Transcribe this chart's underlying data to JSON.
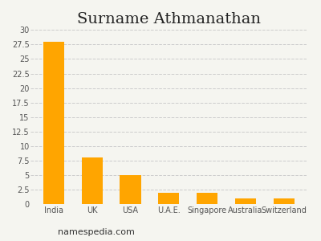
{
  "title": "Surname Athmanathan",
  "categories": [
    "India",
    "UK",
    "USA",
    "U.A.E.",
    "Singapore",
    "Australia",
    "Switzerland"
  ],
  "values": [
    28,
    8,
    5,
    2,
    2,
    1,
    1
  ],
  "bar_color": "#FFA500",
  "ylim": [
    0,
    30
  ],
  "yticks": [
    0,
    2.5,
    5,
    7.5,
    10,
    12.5,
    15,
    17.5,
    20,
    22.5,
    25,
    27.5,
    30
  ],
  "ytick_labels": [
    "0",
    "2.5",
    "5",
    "7.5",
    "10",
    "12.5",
    "15",
    "17.5",
    "20",
    "22.5",
    "25",
    "27.5",
    "30"
  ],
  "grid_color": "#cccccc",
  "grid_linestyle": "--",
  "background_color": "#f5f5f0",
  "title_fontsize": 14,
  "tick_fontsize": 7,
  "watermark": "namespedia.com",
  "watermark_fontsize": 8,
  "bar_width": 0.55
}
